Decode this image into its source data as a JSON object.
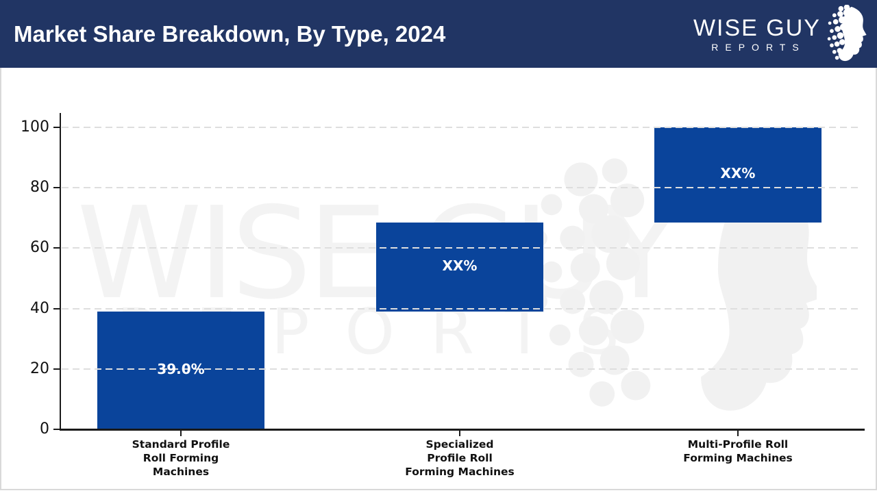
{
  "header": {
    "title": "Market Share Breakdown, By Type, 2024",
    "logo": {
      "name": "WISE GUY",
      "sub": "REPORTS"
    }
  },
  "watermark": {
    "line1": "WISE GUY",
    "line2": "REPORTS"
  },
  "colors": {
    "header_bg": "#213564",
    "bar": "#0A449B",
    "grid": "#DEDEDE",
    "axis": "#1A1A1A",
    "tick_text": "#111111",
    "bar_label_text": "#FFFFFF",
    "watermark": "#F3F3F3"
  },
  "chart_data": {
    "type": "bar",
    "subtype": "waterfall",
    "title": "Market Share Breakdown, By Type, 2024",
    "xlabel": "",
    "ylabel": "",
    "ylim": [
      0,
      105
    ],
    "yticks": [
      0,
      20,
      40,
      60,
      80,
      100
    ],
    "grid": true,
    "legend": "none",
    "bar_color": "#0A449B",
    "categories": [
      [
        "Standard Profile",
        "Roll Forming",
        "Machines"
      ],
      [
        "Specialized",
        "Profile Roll",
        "Forming Machines"
      ],
      [
        "Multi-Profile Roll",
        "Forming Machines"
      ]
    ],
    "segments": [
      {
        "start": 0,
        "end": 39,
        "label": "39.0%"
      },
      {
        "start": 39,
        "end": 68.5,
        "label": "XX%"
      },
      {
        "start": 68.5,
        "end": 100,
        "label": "XX%"
      }
    ]
  }
}
